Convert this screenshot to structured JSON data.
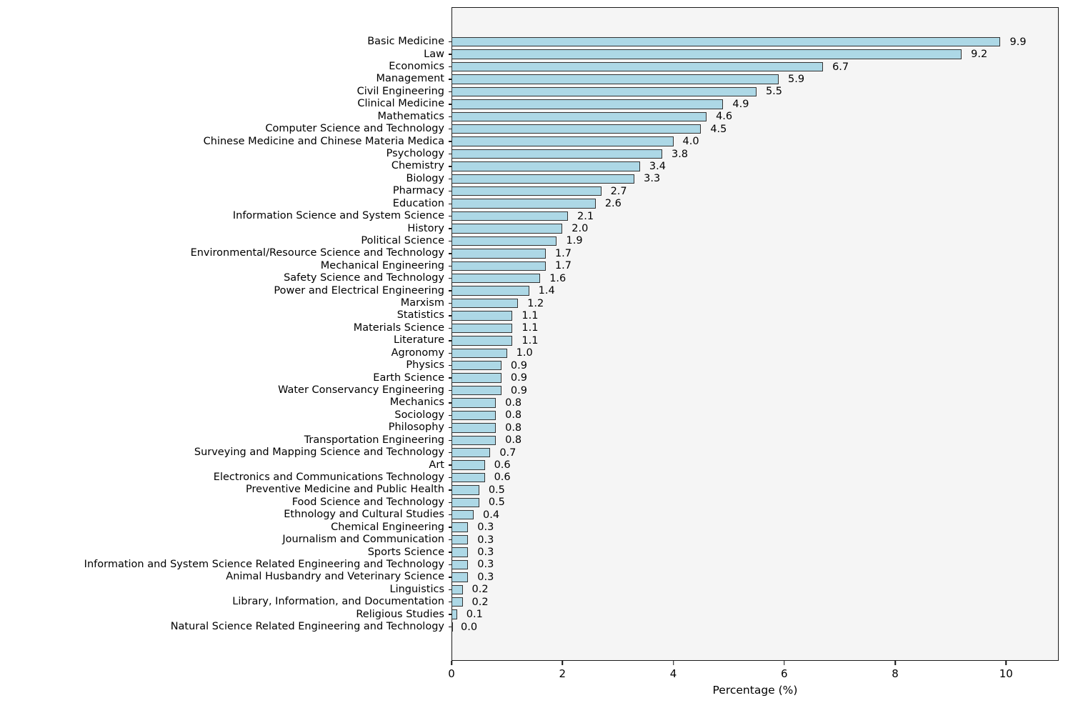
{
  "chart_data": {
    "type": "bar",
    "orientation": "horizontal",
    "title": "",
    "xlabel": "Percentage (%)",
    "ylabel": "",
    "xlim": [
      0,
      10.95
    ],
    "xticks": [
      0,
      2,
      4,
      6,
      8,
      10
    ],
    "grid": false,
    "legend": "none",
    "bar_color": "#ADD8E6",
    "bar_edge_color": "#333333",
    "plot_background": "#f5f5f5",
    "value_label_format": "one_decimal",
    "categories": [
      "Basic Medicine",
      "Law",
      "Economics",
      "Management",
      "Civil Engineering",
      "Clinical Medicine",
      "Mathematics",
      "Computer Science and Technology",
      "Chinese Medicine and Chinese Materia Medica",
      "Psychology",
      "Chemistry",
      "Biology",
      "Pharmacy",
      "Education",
      "Information Science and System Science",
      "History",
      "Political Science",
      "Environmental/Resource Science and Technology",
      "Mechanical Engineering",
      "Safety Science and Technology",
      "Power and Electrical Engineering",
      "Marxism",
      "Statistics",
      "Materials Science",
      "Literature",
      "Agronomy",
      "Physics",
      "Earth Science",
      "Water Conservancy Engineering",
      "Mechanics",
      "Sociology",
      "Philosophy",
      "Transportation Engineering",
      "Surveying and Mapping Science and Technology",
      "Art",
      "Electronics and Communications Technology",
      "Preventive Medicine and Public Health",
      "Food Science and Technology",
      "Ethnology and Cultural Studies",
      "Chemical Engineering",
      "Journalism and Communication",
      "Sports Science",
      "Information and System Science Related Engineering and Technology",
      "Animal Husbandry and Veterinary Science",
      "Linguistics",
      "Library, Information, and Documentation",
      "Religious Studies",
      "Natural Science Related Engineering and Technology"
    ],
    "values": [
      9.9,
      9.2,
      6.7,
      5.9,
      5.5,
      4.9,
      4.6,
      4.5,
      4.0,
      3.8,
      3.4,
      3.3,
      2.7,
      2.6,
      2.1,
      2.0,
      1.9,
      1.7,
      1.7,
      1.6,
      1.4,
      1.2,
      1.1,
      1.1,
      1.1,
      1.0,
      0.9,
      0.9,
      0.9,
      0.8,
      0.8,
      0.8,
      0.8,
      0.7,
      0.6,
      0.6,
      0.5,
      0.5,
      0.4,
      0.3,
      0.3,
      0.3,
      0.3,
      0.3,
      0.2,
      0.2,
      0.1,
      0.0
    ]
  }
}
